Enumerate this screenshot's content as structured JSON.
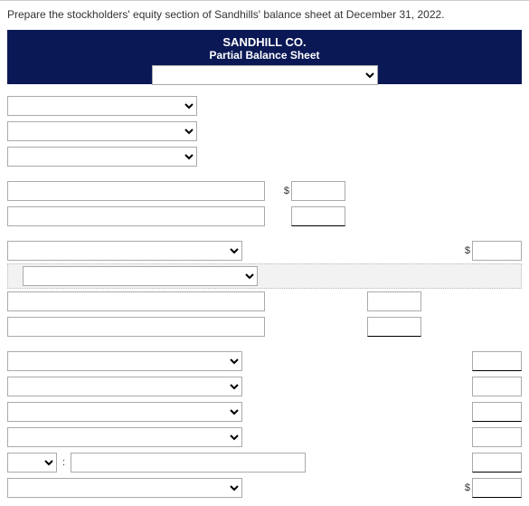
{
  "instruction": "Prepare the stockholders' equity section of Sandhills' balance sheet at December 31, 2022.",
  "header": {
    "company": "SANDHILL CO.",
    "title": "Partial Balance Sheet"
  },
  "symbols": {
    "dollar": "$",
    "colon": ":"
  },
  "colors": {
    "header_bg": "#0a1855",
    "header_text": "#ffffff",
    "border": "#aaaaaa",
    "highlight": "#f2f2f2"
  }
}
